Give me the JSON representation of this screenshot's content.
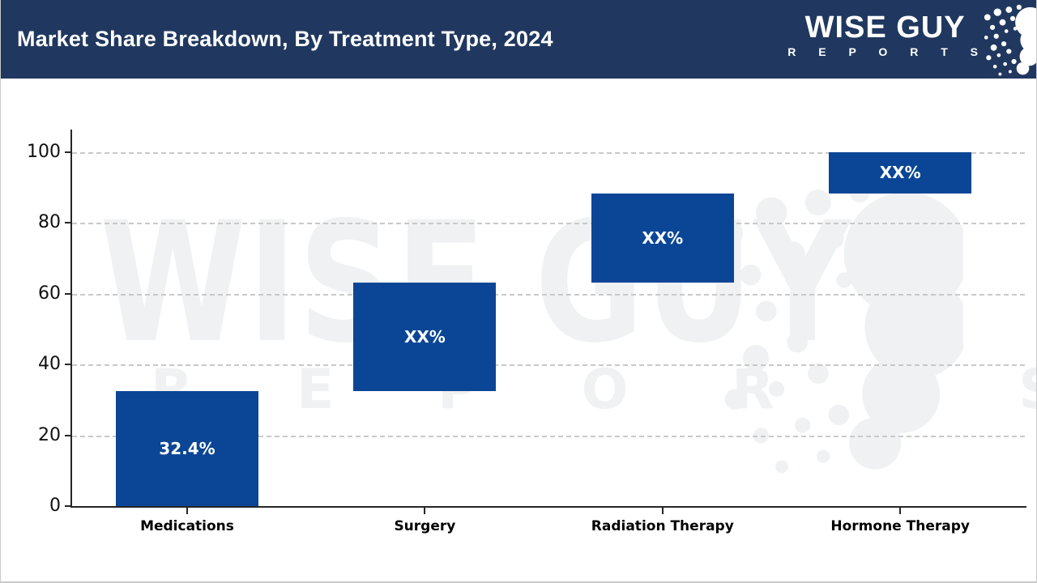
{
  "header": {
    "title": "Market Share Breakdown, By Treatment Type, 2024",
    "bg_color": "#20385f",
    "logo": {
      "line1": "WISE GUY",
      "line2": "R E P O R T S"
    }
  },
  "watermark": {
    "line1": "WISE GUY",
    "line2": "R E P O R T S"
  },
  "chart_data": {
    "type": "bar",
    "subtype": "waterfall",
    "title": "Market Share Breakdown, By Treatment Type, 2024",
    "categories": [
      "Medications",
      "Surgery",
      "Radiation Therapy",
      "Hormone Therapy"
    ],
    "segments": [
      {
        "category": "Medications",
        "start": 0,
        "end": 32.4,
        "label": "32.4%"
      },
      {
        "category": "Surgery",
        "start": 32.4,
        "end": 63.2,
        "label": "XX%"
      },
      {
        "category": "Radiation Therapy",
        "start": 63.2,
        "end": 88.2,
        "label": "XX%"
      },
      {
        "category": "Hormone Therapy",
        "start": 88.2,
        "end": 100,
        "label": "XX%"
      }
    ],
    "ylim": [
      0,
      106
    ],
    "yticks": [
      0,
      20,
      40,
      60,
      80,
      100
    ],
    "xlabel": "",
    "ylabel": "",
    "grid": "horizontal-dashed",
    "legend": "none",
    "bar_color": "#0b4696",
    "bar_label_color": "#ffffff"
  }
}
